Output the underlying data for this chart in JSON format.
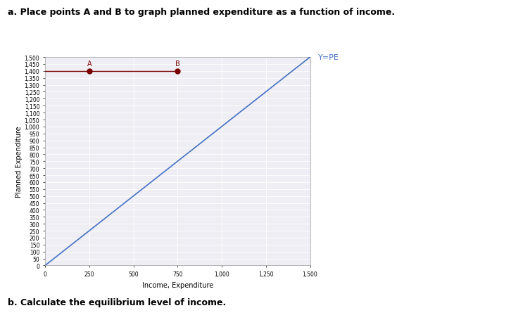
{
  "title": "a. Place points A and B to graph planned expenditure as a function of income.",
  "subtitle_b": "b. Calculate the equilibrium level of income.",
  "xlabel": "Income, Expenditure",
  "ylabel": "Planned Expenditure",
  "xmin": 0,
  "xmax": 1500,
  "ymin": 0,
  "ymax": 1500,
  "xticks": [
    0,
    250,
    500,
    750,
    1000,
    1250,
    1500
  ],
  "xtick_labels": [
    "0",
    "250",
    "500",
    "750",
    "1,000",
    "1,250",
    "1,500"
  ],
  "ytick_step": 50,
  "ye_line_color": "#4472C4",
  "ye_line_label": "Y=PE",
  "pe_line_color": "#7B0000",
  "pe_value": 1400,
  "point_A_x": 250,
  "point_A_y": 1400,
  "point_A_label": "A",
  "point_B_x": 750,
  "point_B_y": 1400,
  "point_B_label": "B",
  "point_color": "#7B0000",
  "point_size": 25,
  "background_color": "#FFFFFF",
  "plot_bg_color": "#EEEEF4",
  "grid_color": "#FFFFFF",
  "title_fontsize": 9,
  "axis_fontsize": 7,
  "tick_fontsize": 5.5,
  "label_fontsize": 7,
  "ye_label_fontsize": 8
}
